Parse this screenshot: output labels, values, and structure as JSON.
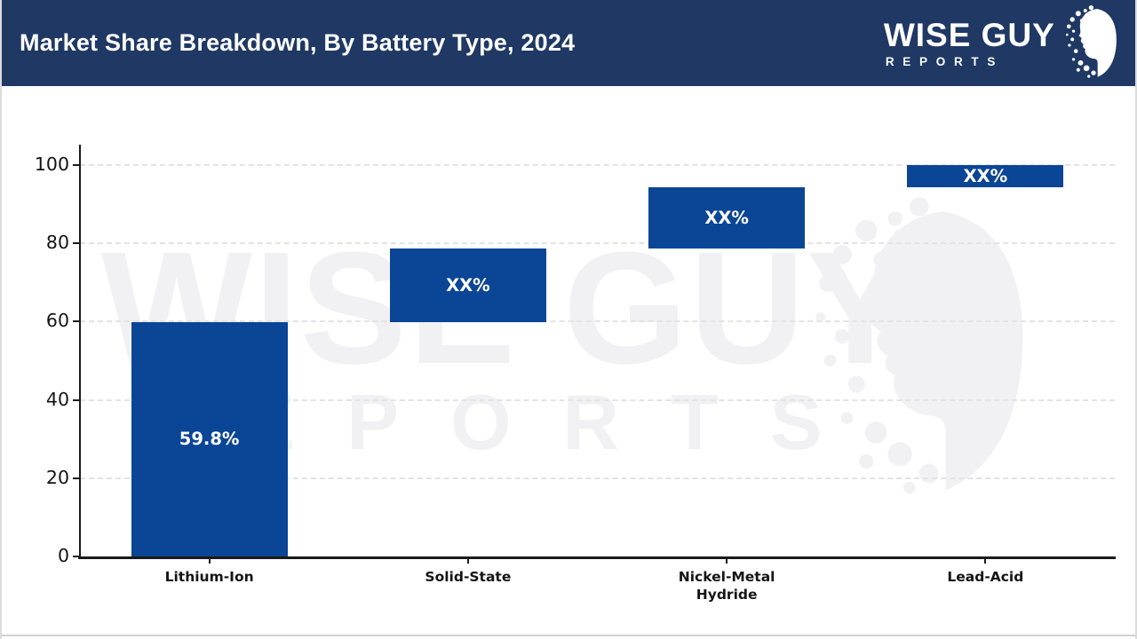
{
  "page": {
    "background": "#ffffff",
    "frame_color": "#dcdcdc"
  },
  "header": {
    "bg_color": "#1f3864",
    "title": "Market Share Breakdown, By Battery Type, 2024",
    "logo": {
      "primary": "WISE GUY",
      "secondary": "REPORTS"
    }
  },
  "watermark": {
    "line1": "WISE GUY",
    "line2": "REPORTS",
    "color": "#f1f1f4"
  },
  "chart_data": {
    "type": "bar",
    "subtype": "waterfall",
    "title": "Market Share Breakdown, By Battery Type, 2024",
    "categories": [
      "Lithium-Ion",
      "Solid-State",
      "Nickel-Metal Hydride",
      "Lead-Acid"
    ],
    "segments": [
      {
        "category": "Lithium-Ion",
        "start": 0,
        "end": 59.8,
        "label": "59.8%"
      },
      {
        "category": "Solid-State",
        "start": 59.8,
        "end": 78.7,
        "label": "XX%"
      },
      {
        "category": "Nickel-Metal Hydride",
        "start": 78.7,
        "end": 94.3,
        "label": "XX%"
      },
      {
        "category": "Lead-Acid",
        "start": 94.3,
        "end": 100,
        "label": "XX%"
      }
    ],
    "xlabel": "",
    "ylabel": "",
    "ylim": [
      0,
      100
    ],
    "yticks": [
      0,
      20,
      40,
      60,
      80,
      100
    ],
    "grid": "horizontal-dashed",
    "legend": "none",
    "bar_color": "#0b4596",
    "bar_label_color": "#ffffff"
  }
}
